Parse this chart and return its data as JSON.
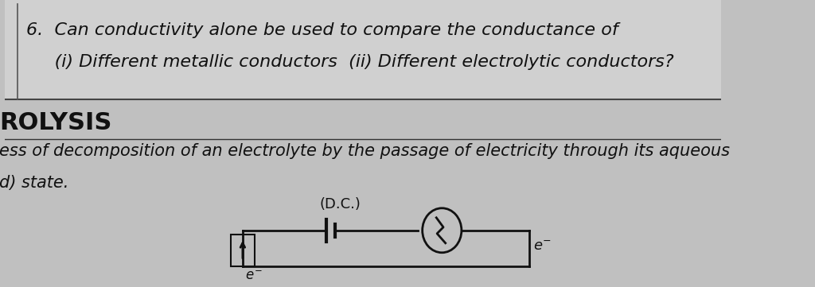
{
  "bg_color_top": "#b8b8b8",
  "bg_color_bottom": "#c0c0c0",
  "question_box_bg": "#d0d0d0",
  "question_box_border": "#555555",
  "line1": "6.  Can conductivity alone be used to compare the conductance of",
  "line2": "     (i) Different metallic conductors  (ii) Different electrolytic conductors?",
  "section_label": "ROLYSIS",
  "body_line1": "ess of decomposition of an electrolyte by the passage of electricity through its aqueous",
  "body_line2": "d) state.",
  "dc_label": "(D.C.)",
  "font_size_question": 16,
  "font_size_body": 15,
  "font_size_section": 22,
  "text_color": "#111111",
  "circuit_color": "#111111"
}
